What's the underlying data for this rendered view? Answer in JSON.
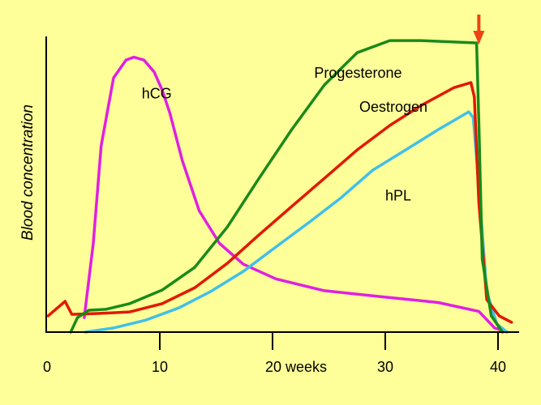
{
  "chart_data": {
    "type": "line",
    "xlabel": "",
    "ylabel": "Blood concentration",
    "xlim": [
      0,
      42.5
    ],
    "ylim": [
      0,
      100
    ],
    "x_ticks": [
      {
        "value": 0,
        "label": "0"
      },
      {
        "value": 10,
        "label": "10"
      },
      {
        "value": 20,
        "label": "20 weeks"
      },
      {
        "value": 30,
        "label": "30"
      },
      {
        "value": 40,
        "label": "40"
      }
    ],
    "grid": false,
    "background": "#ffff99",
    "annotation": {
      "type": "arrow",
      "x": 38.3,
      "color": "#ee4411"
    },
    "series": [
      {
        "name": "hCG",
        "color": "#e020e0",
        "label_at": [
          8.4,
          79
        ],
        "points": [
          [
            3.3,
            4.9
          ],
          [
            4.1,
            30
          ],
          [
            4.8,
            63
          ],
          [
            5.9,
            86
          ],
          [
            7.0,
            92
          ],
          [
            7.7,
            93
          ],
          [
            8.6,
            92
          ],
          [
            9.5,
            88
          ],
          [
            10.2,
            82
          ],
          [
            10.9,
            74
          ],
          [
            12.0,
            58
          ],
          [
            13.5,
            41
          ],
          [
            15.3,
            30
          ],
          [
            17.4,
            23
          ],
          [
            20.3,
            18
          ],
          [
            24.6,
            14
          ],
          [
            29.6,
            12
          ],
          [
            34.7,
            10
          ],
          [
            38.3,
            7
          ],
          [
            39.7,
            1.4
          ],
          [
            40.8,
            0
          ]
        ]
      },
      {
        "name": "Progesterone",
        "color": "#1a8a1a",
        "label_at": [
          23.7,
          86
        ],
        "points": [
          [
            2.1,
            0
          ],
          [
            2.7,
            4.9
          ],
          [
            3.7,
            7.4
          ],
          [
            5.2,
            7.7
          ],
          [
            7.3,
            9.6
          ],
          [
            10.2,
            14.2
          ],
          [
            13.1,
            21.9
          ],
          [
            16.0,
            35.6
          ],
          [
            18.8,
            52
          ],
          [
            21.7,
            68.5
          ],
          [
            24.6,
            83.6
          ],
          [
            27.5,
            94.5
          ],
          [
            30.4,
            98.6
          ],
          [
            33.2,
            98.6
          ],
          [
            38.1,
            97.8
          ],
          [
            38.3,
            71
          ],
          [
            38.6,
            24.7
          ],
          [
            39.4,
            5.5
          ],
          [
            40.4,
            0
          ]
        ]
      },
      {
        "name": "Oestrogen",
        "color": "#e01a00",
        "label_at": [
          27.7,
          74.5
        ],
        "points": [
          [
            0.1,
            5.5
          ],
          [
            1.6,
            10.4
          ],
          [
            2.2,
            6
          ],
          [
            4.5,
            6.3
          ],
          [
            7.3,
            6.8
          ],
          [
            10.2,
            9.6
          ],
          [
            13.1,
            15
          ],
          [
            16,
            23.3
          ],
          [
            18.8,
            32.9
          ],
          [
            21.7,
            42.5
          ],
          [
            24.6,
            52
          ],
          [
            27.5,
            61.6
          ],
          [
            30.4,
            69.9
          ],
          [
            33.2,
            76.7
          ],
          [
            36.1,
            82.7
          ],
          [
            37.6,
            84.4
          ],
          [
            37.9,
            79.5
          ],
          [
            38.3,
            43.8
          ],
          [
            39,
            11
          ],
          [
            40.1,
            5.5
          ],
          [
            41.2,
            3.3
          ]
        ]
      },
      {
        "name": "hPL",
        "color": "#40c0e8",
        "label_at": [
          30,
          44.5
        ],
        "points": [
          [
            3.4,
            0
          ],
          [
            5.9,
            1.4
          ],
          [
            8.8,
            4.1
          ],
          [
            11.7,
            8.2
          ],
          [
            14.5,
            13.7
          ],
          [
            17.4,
            20.5
          ],
          [
            20.3,
            28.8
          ],
          [
            23.2,
            37
          ],
          [
            26,
            45.2
          ],
          [
            28.9,
            54.8
          ],
          [
            31.8,
            61.6
          ],
          [
            34.7,
            68.5
          ],
          [
            37.4,
            74.5
          ],
          [
            37.8,
            72.6
          ],
          [
            38.3,
            49.3
          ],
          [
            39,
            13.7
          ],
          [
            39.9,
            2.7
          ],
          [
            40.8,
            0
          ]
        ]
      }
    ]
  }
}
